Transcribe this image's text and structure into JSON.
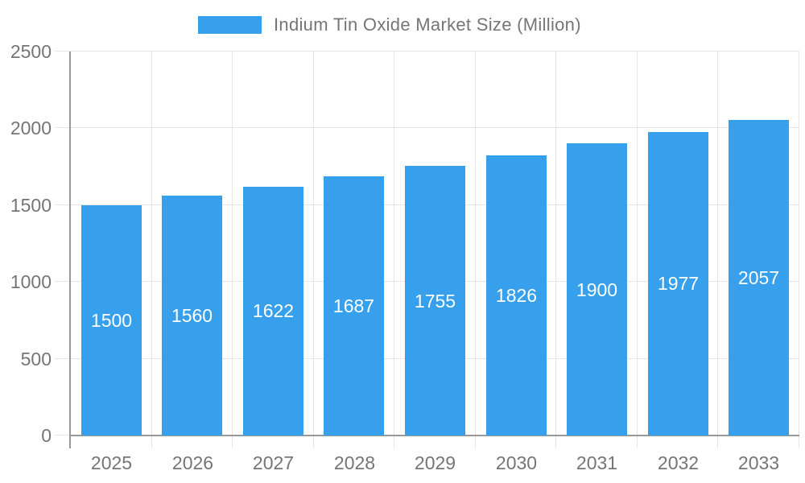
{
  "chart_data": {
    "type": "bar",
    "title": "Indium Tin Oxide Market Size (Million)",
    "categories": [
      "2025",
      "2026",
      "2027",
      "2028",
      "2029",
      "2030",
      "2031",
      "2032",
      "2033"
    ],
    "values": [
      1500,
      1560,
      1622,
      1687,
      1755,
      1826,
      1900,
      1977,
      2057
    ],
    "series": [
      {
        "name": "Indium Tin Oxide Market Size (Million)",
        "values": [
          1500,
          1560,
          1622,
          1687,
          1755,
          1826,
          1900,
          1977,
          2057
        ]
      }
    ],
    "xlabel": "",
    "ylabel": "",
    "ylim": [
      0,
      2500
    ],
    "yticks": [
      0,
      500,
      1000,
      1500,
      2000,
      2500
    ],
    "grid": true,
    "legend_position": "top-center",
    "value_labels": "inside-bar, vertically centered, white",
    "colors": {
      "bar": "#36A0EC",
      "value_label_text": "#ffffff",
      "axis_text": "#757575",
      "legend_text": "#757575",
      "gridline": "#e5e5e5",
      "axis_line": "#999999",
      "background": "#ffffff"
    }
  },
  "legend": {
    "label": "Indium Tin Oxide Market Size (Million)"
  }
}
